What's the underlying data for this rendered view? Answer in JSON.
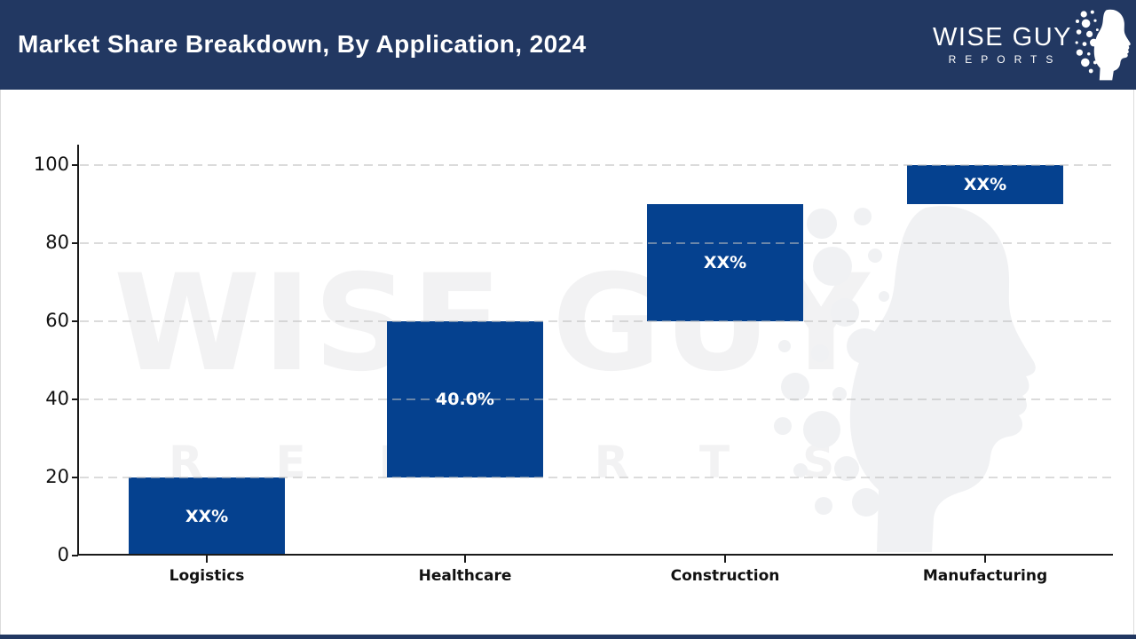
{
  "header": {
    "title": "Market Share Breakdown, By Application, 2024",
    "logo": {
      "line1": "WISE GUY",
      "line2": "REPORTS"
    }
  },
  "watermark": {
    "line1": "WISE GUY",
    "line2": "REPORTS"
  },
  "colors": {
    "header_bg": "#223862",
    "bar_fill": "#05418f",
    "bar_label": "#ffffff",
    "axis": "#1a1a1a",
    "gridline": "#d9d9d9",
    "watermark": "#f2f2f3"
  },
  "chart_data": {
    "type": "bar",
    "subtype": "floating-waterfall",
    "title": "Market Share Breakdown, By Application, 2024",
    "categories": [
      "Logistics",
      "Healthcare",
      "Construction",
      "Manufacturing"
    ],
    "segments": [
      {
        "category": "Logistics",
        "start": 0,
        "end": 20,
        "label": "XX%"
      },
      {
        "category": "Healthcare",
        "start": 20,
        "end": 60,
        "label": "40.0%"
      },
      {
        "category": "Construction",
        "start": 60,
        "end": 90,
        "label": "XX%"
      },
      {
        "category": "Manufacturing",
        "start": 90,
        "end": 100,
        "label": "XX%"
      }
    ],
    "yticks": [
      0,
      20,
      40,
      60,
      80,
      100
    ],
    "ylim": [
      0,
      105
    ],
    "xlabel": "",
    "ylabel": "",
    "grid": "horizontal-dashed",
    "legend": "none",
    "bar_color": "#05418f",
    "bar_label_color": "#ffffff"
  }
}
